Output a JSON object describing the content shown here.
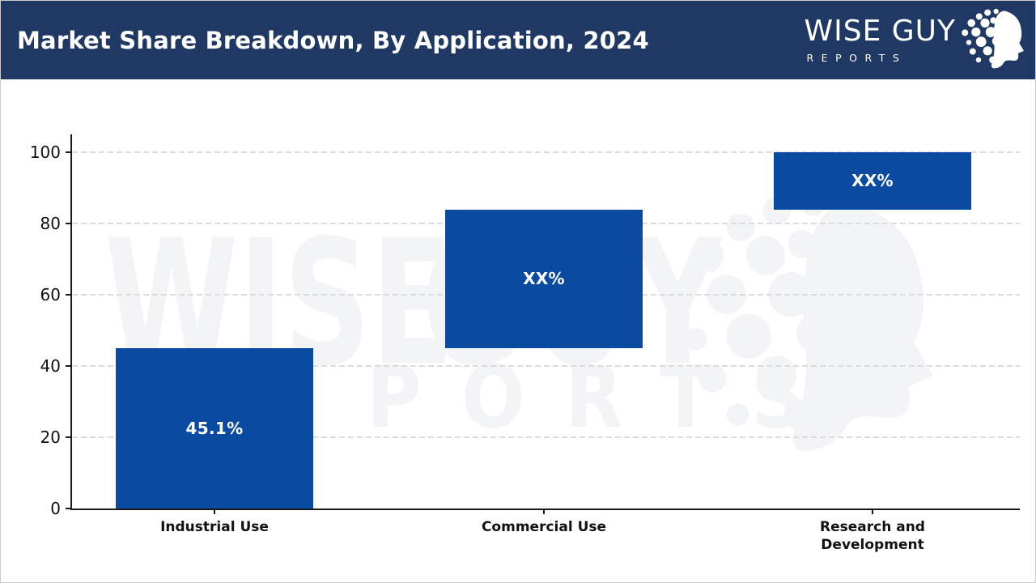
{
  "header": {
    "title": "Market Share Breakdown, By Application, 2024",
    "logo": {
      "brand_top": "WISE GUY",
      "brand_bottom": "REPORTS"
    }
  },
  "watermark": {
    "word1": "WISE",
    "word2": "G",
    "word3": "U",
    "word4": "Y",
    "word5": "PORTS"
  },
  "chart_data": {
    "type": "bar",
    "subtype": "stacked-breakdown-waterfall",
    "title": "Market Share Breakdown, By Application, 2024",
    "categories": [
      "Industrial Use",
      "Commercial Use",
      "Research and Development"
    ],
    "bars": [
      {
        "category": "Industrial Use",
        "start": 0,
        "end": 45.1,
        "label": "45.1%"
      },
      {
        "category": "Commercial Use",
        "start": 45.1,
        "end": 83.9,
        "label": "XX%"
      },
      {
        "category": "Research and Development",
        "start": 83.9,
        "end": 100,
        "label": "XX%"
      }
    ],
    "xlabel": "",
    "ylabel": "",
    "ylim": [
      0,
      100
    ],
    "yticks": [
      0,
      20,
      40,
      60,
      80,
      100
    ],
    "grid": "horizontal-dashed",
    "legend": "none",
    "bar_color": "#0a4aa1",
    "bar_label_color": "#ffffff"
  },
  "colors": {
    "header_bg": "#203864",
    "axis": "#1a1a1a",
    "grid": "#dcdcdc",
    "watermark": "#f3f4f6",
    "bar": "#0a4aa1"
  }
}
